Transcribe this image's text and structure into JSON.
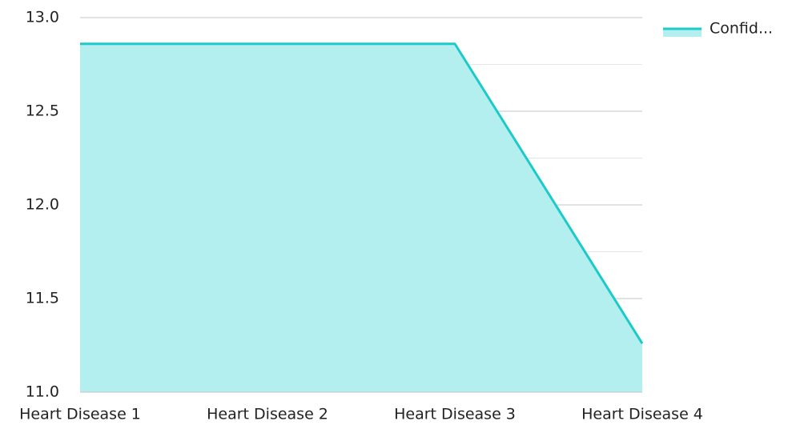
{
  "chart_data": {
    "type": "area",
    "categories": [
      "Heart Disease 1",
      "Heart Disease 2",
      "Heart Disease 3",
      "Heart Disease 4"
    ],
    "series": [
      {
        "name": "Confid...",
        "color": "#1ccaca",
        "fill": "#b3efee",
        "values": [
          12.86,
          12.86,
          12.86,
          11.26
        ]
      }
    ],
    "ylim": [
      11,
      13
    ],
    "yticks": [
      {
        "value": 11,
        "label": "11.0"
      },
      {
        "value": 11.5,
        "label": "11.5"
      },
      {
        "value": 12,
        "label": "12.0"
      },
      {
        "value": 12.5,
        "label": "12.5"
      },
      {
        "value": 13,
        "label": "13.0"
      }
    ],
    "minor_yticks": [
      11.25,
      11.75,
      12.25,
      12.75
    ],
    "grid": true,
    "legend": "top-right"
  }
}
